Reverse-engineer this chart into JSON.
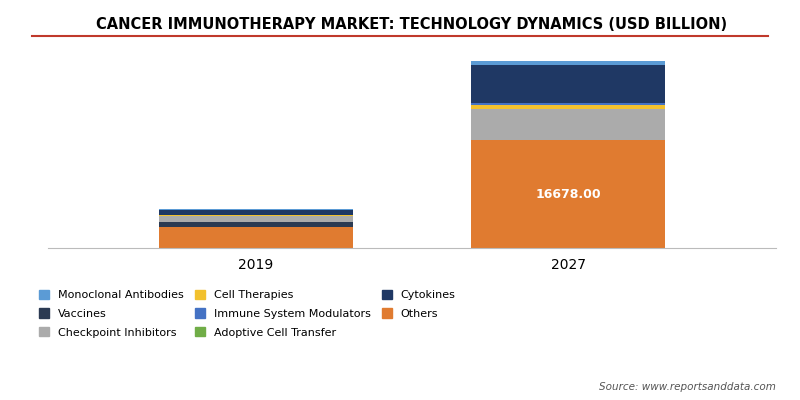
{
  "title": "CANCER IMMUNOTHERAPY MARKET: TECHNOLOGY DYNAMICS (USD BILLION)",
  "categories": [
    "2019",
    "2027"
  ],
  "segments": [
    {
      "name": "Others",
      "color": "#E07B30",
      "values": [
        3200,
        16678
      ]
    },
    {
      "name": "Vaccines",
      "color": "#2B3A52",
      "values": [
        800,
        0
      ]
    },
    {
      "name": "Checkpoint Inhibitors",
      "color": "#ABABAB",
      "values": [
        950,
        4800
      ]
    },
    {
      "name": "Cell Therapies",
      "color": "#F2C12E",
      "values": [
        120,
        650
      ]
    },
    {
      "name": "Immune System Modulators",
      "color": "#4472C4",
      "values": [
        0,
        400
      ]
    },
    {
      "name": "Adoptive Cell Transfer",
      "color": "#70AD47",
      "values": [
        0,
        0
      ]
    },
    {
      "name": "Cytokines",
      "color": "#1F3864",
      "values": [
        800,
        5800
      ]
    },
    {
      "name": "Monoclonal Antibodies",
      "color": "#5B9BD5",
      "values": [
        200,
        600
      ]
    }
  ],
  "annotation": {
    "bar_index": 1,
    "text": "16678.00",
    "color": "white",
    "fontsize": 9
  },
  "source_text": "Source: www.reportsanddata.com",
  "legend_items": [
    {
      "name": "Monoclonal Antibodies",
      "color": "#5B9BD5"
    },
    {
      "name": "Vaccines",
      "color": "#2B3A52"
    },
    {
      "name": "Checkpoint Inhibitors",
      "color": "#ABABAB"
    },
    {
      "name": "Cell Therapies",
      "color": "#F2C12E"
    },
    {
      "name": "Immune System Modulators",
      "color": "#4472C4"
    },
    {
      "name": "Adoptive Cell Transfer",
      "color": "#70AD47"
    },
    {
      "name": "Cytokines",
      "color": "#1F3864"
    },
    {
      "name": "Others",
      "color": "#E07B30"
    }
  ],
  "bar_width": 0.28,
  "title_fontsize": 10.5,
  "figsize": [
    8.0,
    4.0
  ],
  "dpi": 100,
  "ylim": [
    0,
    31000
  ],
  "background_color": "#FFFFFF",
  "title_line_color": "#C0392B",
  "bar_positions": [
    0.3,
    0.75
  ]
}
